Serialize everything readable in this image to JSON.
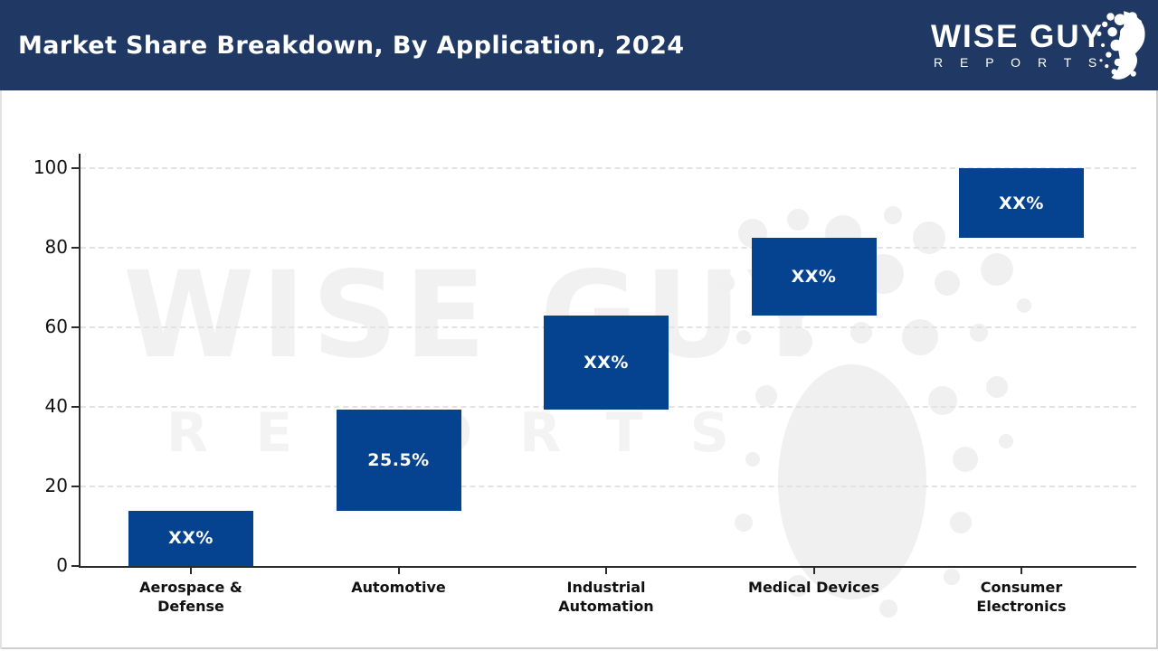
{
  "header": {
    "title": "Market Share Breakdown, By Application, 2024",
    "bg_color": "#1F3864",
    "logo": {
      "line1": "WISE GUY",
      "line2": "R E P O R T S"
    }
  },
  "watermark": {
    "line1": "WISE GUY",
    "line2": "REPORTS"
  },
  "chart_data": {
    "type": "bar",
    "subtype": "floating-waterfall",
    "title": "Market Share Breakdown, By Application, 2024",
    "categories": [
      "Aerospace & Defense",
      "Automotive",
      "Industrial Automation",
      "Medical Devices",
      "Consumer Electronics"
    ],
    "bars": [
      {
        "category_lines": [
          "Aerospace &",
          "Defense"
        ],
        "start": 0,
        "end": 13.9,
        "value": 13.9,
        "label": "XX%"
      },
      {
        "category_lines": [
          "Automotive"
        ],
        "start": 13.9,
        "end": 39.4,
        "value": 25.5,
        "label": "25.5%"
      },
      {
        "category_lines": [
          "Industrial",
          "Automation"
        ],
        "start": 39.4,
        "end": 62.9,
        "value": 23.5,
        "label": "XX%"
      },
      {
        "category_lines": [
          "Medical Devices"
        ],
        "start": 62.9,
        "end": 82.5,
        "value": 19.6,
        "label": "XX%"
      },
      {
        "category_lines": [
          "Consumer",
          "Electronics"
        ],
        "start": 82.5,
        "end": 100,
        "value": 17.5,
        "label": "XX%"
      }
    ],
    "ylim": [
      0,
      100
    ],
    "yticks": [
      0,
      20,
      40,
      60,
      80,
      100
    ],
    "xlabel": "",
    "ylabel": "",
    "grid": "horizontal-dashed",
    "legend": "none",
    "bar_color": "#05428F",
    "grid_color": "#e3e3e3",
    "axis_color": "#2b2b2b"
  }
}
